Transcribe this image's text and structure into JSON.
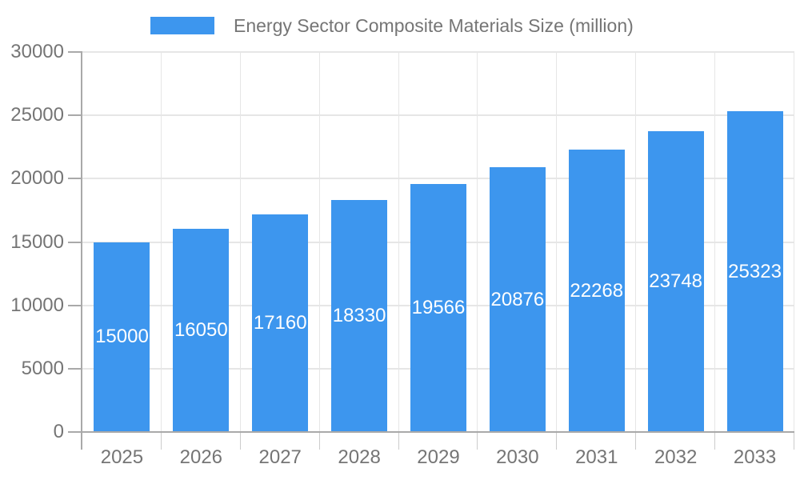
{
  "legend": {
    "label": "Energy Sector Composite Materials Size (million)"
  },
  "colors": {
    "bar": "#3D96EE",
    "axis": "#a9a9a9",
    "tick": "#cccccc",
    "gridline": "#e6e6e6",
    "label_text": "#757575",
    "value_label_text": "#ffffff",
    "background": "#ffffff"
  },
  "chart_data": {
    "type": "bar",
    "title": "Energy Sector Composite Materials Size (million)",
    "categories": [
      "2025",
      "2026",
      "2027",
      "2028",
      "2029",
      "2030",
      "2031",
      "2032",
      "2033"
    ],
    "values": [
      15000,
      16050,
      17160,
      18330,
      19566,
      20876,
      22268,
      23748,
      25323
    ],
    "xlabel": "",
    "ylabel": "",
    "ylim": [
      0,
      30000
    ],
    "yticks": [
      0,
      5000,
      10000,
      15000,
      20000,
      25000,
      30000
    ],
    "grid": true,
    "legend_position": "top-center",
    "value_labels_position": "inside-center"
  }
}
